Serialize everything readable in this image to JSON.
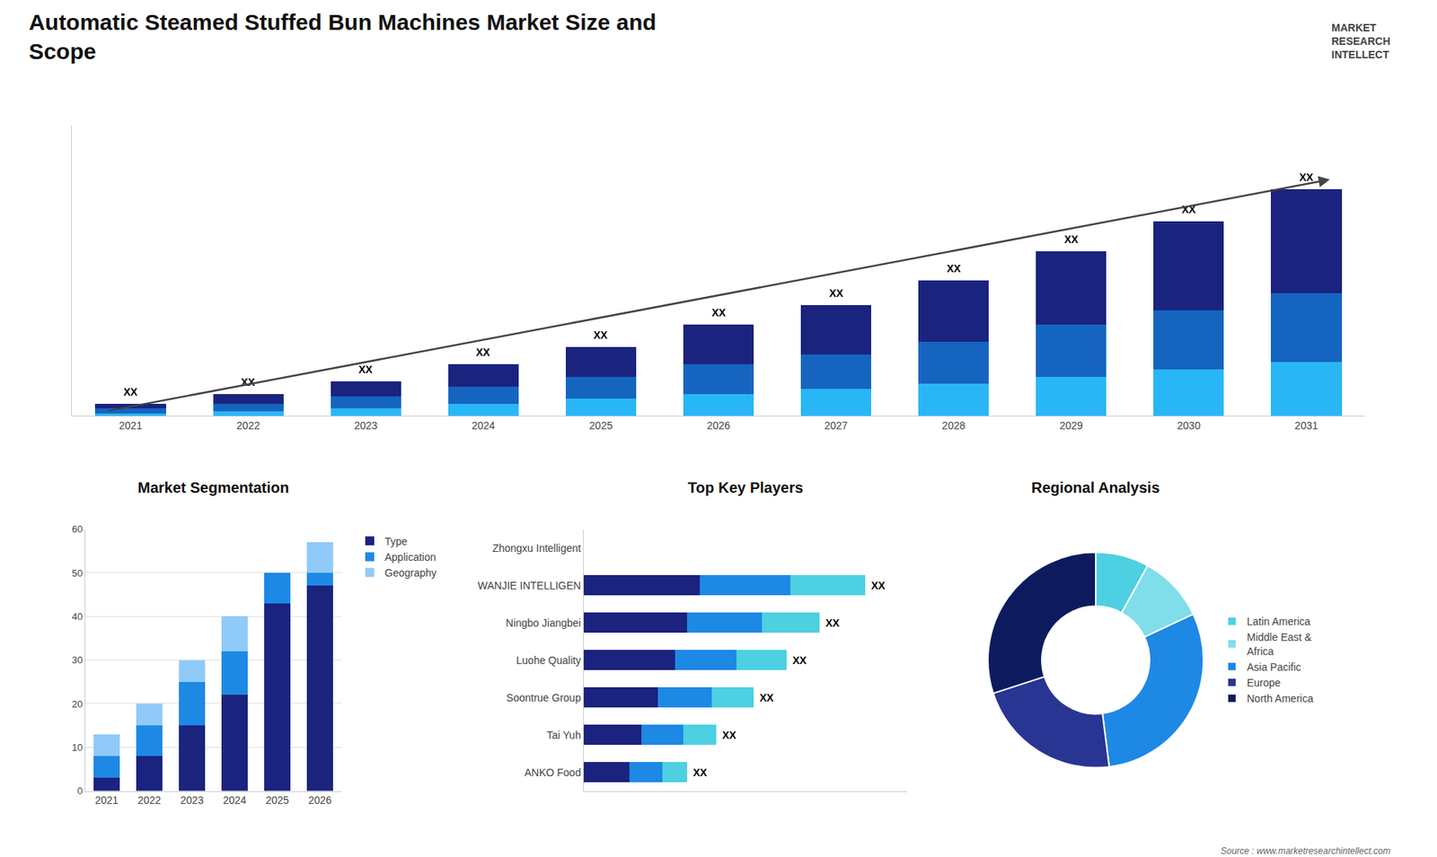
{
  "title": "Automatic Steamed Stuffed Bun Machines Market Size and\nScope",
  "annotations": [
    "MARKET\nRESEARCH\nINTELLECT",
    "Source : www.marketresearchintellect.com"
  ],
  "chart_data": [
    {
      "type": "bar",
      "stacked": true,
      "categories": [
        "2021",
        "2022",
        "2023",
        "2024",
        "2025",
        "2026",
        "2027",
        "2028",
        "2029",
        "2030",
        "2031"
      ],
      "series": [
        {
          "color": "#29b6f6",
          "values": [
            1,
            2,
            3,
            5,
            7,
            9,
            11,
            13,
            16,
            19,
            22
          ]
        },
        {
          "color": "#1565c0",
          "values": [
            2,
            3,
            5,
            7,
            9,
            12,
            14,
            17,
            21,
            24,
            28
          ]
        },
        {
          "color": "#1a237e",
          "values": [
            2,
            4,
            6,
            9,
            12,
            16,
            20,
            25,
            30,
            36,
            42
          ]
        }
      ],
      "ylim": [
        0,
        117.76
      ],
      "tick_labels": "x",
      "grid": false,
      "annotations": [
        {
          "x": "2021",
          "text": "XX"
        },
        {
          "x": "2022",
          "text": "XX"
        },
        {
          "x": "2023",
          "text": "XX"
        },
        {
          "x": "2024",
          "text": "XX"
        },
        {
          "x": "2025",
          "text": "XX"
        },
        {
          "x": "2026",
          "text": "XX"
        },
        {
          "x": "2027",
          "text": "XX"
        },
        {
          "x": "2028",
          "text": "XX"
        },
        {
          "x": "2029",
          "text": "XX"
        },
        {
          "x": "2030",
          "text": "XX"
        },
        {
          "x": "2031",
          "text": "XX"
        }
      ]
    },
    {
      "type": "bar",
      "title": "Market Segmentation",
      "stacked": true,
      "categories": [
        "2021",
        "2022",
        "2023",
        "2024",
        "2025",
        "2026"
      ],
      "series": [
        {
          "name": "Type",
          "color": "#1a237e",
          "values": [
            3,
            8,
            15,
            22,
            43,
            47
          ]
        },
        {
          "name": "Application",
          "color": "#1e88e5",
          "values": [
            5,
            7,
            10,
            10,
            7,
            3
          ]
        },
        {
          "name": "Geography",
          "color": "#90caf9",
          "values": [
            5,
            5,
            5,
            8,
            0,
            7
          ]
        }
      ],
      "ylim": [
        0,
        60
      ],
      "yticks": [
        0,
        10,
        20,
        30,
        40,
        50,
        60
      ],
      "grid": true,
      "legend": "right"
    },
    {
      "type": "bar",
      "title": "Top Key Players",
      "stacked": true,
      "orientation": "horizontal",
      "categories": [
        "Zhongxu Intelligent",
        "WANJIE INTELLIGEN",
        "Ningbo Jiangbei",
        "Luohe Quality",
        "Soontrue Group",
        "Tai Yuh",
        "ANKO Food"
      ],
      "series": [
        {
          "color": "#1a237e",
          "values": [
            0,
            28,
            25,
            22,
            18,
            14,
            11
          ]
        },
        {
          "color": "#1e88e5",
          "values": [
            0,
            22,
            18,
            15,
            13,
            10,
            8
          ]
        },
        {
          "color": "#4dd0e1",
          "values": [
            0,
            18,
            14,
            12,
            10,
            8,
            6
          ]
        }
      ],
      "xlim": [
        0,
        78.2
      ],
      "tick_labels": "y",
      "grid": false,
      "annotations": [
        {
          "y": "WANJIE INTELLIGEN",
          "text": "XX"
        },
        {
          "y": "Ningbo Jiangbei",
          "text": "XX"
        },
        {
          "y": "Luohe Quality",
          "text": "XX"
        },
        {
          "y": "Soontrue Group",
          "text": "XX"
        },
        {
          "y": "Tai Yuh",
          "text": "XX"
        },
        {
          "y": "ANKO Food",
          "text": "XX"
        }
      ]
    },
    {
      "type": "pie",
      "title": "Regional Analysis",
      "categories": [
        "Latin America",
        "Middle East &\nAfrica",
        "Asia Pacific",
        "Europe",
        "North America"
      ],
      "values": [
        8,
        10,
        30,
        22,
        30
      ],
      "colors": [
        "#4dd0e1",
        "#80deea",
        "#1e88e5",
        "#283593",
        "#0d1b5e"
      ],
      "data_labels": false,
      "legend": "right"
    }
  ]
}
